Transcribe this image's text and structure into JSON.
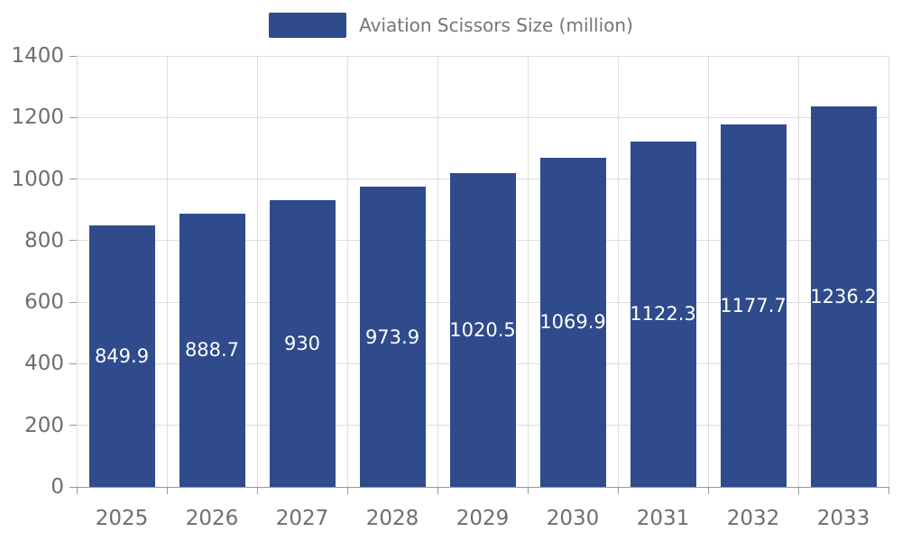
{
  "chart_data": {
    "type": "bar",
    "title": "",
    "legend": "Aviation Scissors Size (million)",
    "categories": [
      "2025",
      "2026",
      "2027",
      "2028",
      "2029",
      "2030",
      "2031",
      "2032",
      "2033"
    ],
    "values": [
      849.9,
      888.7,
      930,
      973.9,
      1020.5,
      1069.9,
      1122.3,
      1177.7,
      1236.2
    ],
    "value_labels": [
      "849.9",
      "888.7",
      "930",
      "973.9",
      "1020.5",
      "1069.9",
      "1122.3",
      "1177.7",
      "1236.2"
    ],
    "xlabel": "",
    "ylabel": "",
    "ylim": [
      0,
      1400
    ],
    "yticks": [
      0,
      200,
      400,
      600,
      800,
      1000,
      1200,
      1400
    ],
    "grid": true,
    "legend_position": "top",
    "colors": {
      "bar": "#2f4b8c",
      "grid": "#dddddd",
      "axis": "#999999",
      "tick_text": "#6e6e6e",
      "legend_text": "#757575",
      "value_label": "#ffffff",
      "background": "#ffffff"
    }
  }
}
